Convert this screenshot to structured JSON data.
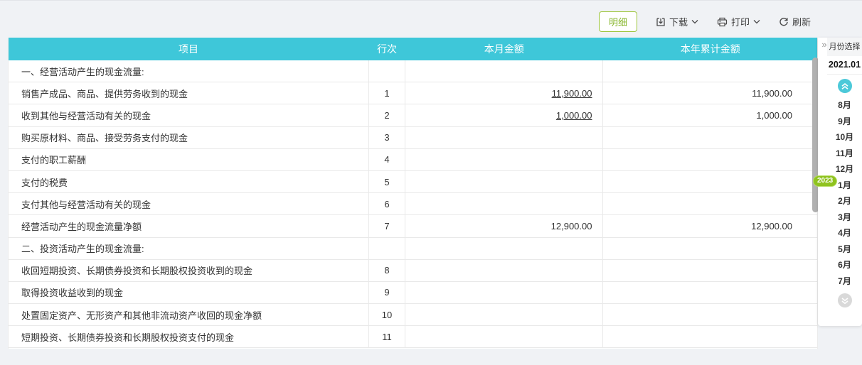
{
  "toolbar": {
    "detail_label": "明细",
    "download_label": "下载",
    "print_label": "打印",
    "refresh_label": "刷新"
  },
  "table": {
    "columns": [
      "项目",
      "行次",
      "本月金额",
      "本年累计金额"
    ],
    "rows": [
      {
        "item": "一、经营活动产生的现金流量:",
        "line": "",
        "month": "",
        "year": "",
        "month_link": false
      },
      {
        "item": "销售产成品、商品、提供劳务收到的现金",
        "line": "1",
        "month": "11,900.00",
        "year": "11,900.00",
        "month_link": true
      },
      {
        "item": "收到其他与经营活动有关的现金",
        "line": "2",
        "month": "1,000.00",
        "year": "1,000.00",
        "month_link": true
      },
      {
        "item": "购买原材料、商品、接受劳务支付的现金",
        "line": "3",
        "month": "",
        "year": "",
        "month_link": false
      },
      {
        "item": "支付的职工薪酬",
        "line": "4",
        "month": "",
        "year": "",
        "month_link": false
      },
      {
        "item": "支付的税费",
        "line": "5",
        "month": "",
        "year": "",
        "month_link": false
      },
      {
        "item": "支付其他与经营活动有关的现金",
        "line": "6",
        "month": "",
        "year": "",
        "month_link": false
      },
      {
        "item": "经营活动产生的现金流量净额",
        "line": "7",
        "month": "12,900.00",
        "year": "12,900.00",
        "month_link": false
      },
      {
        "item": "二、投资活动产生的现金流量:",
        "line": "",
        "month": "",
        "year": "",
        "month_link": false
      },
      {
        "item": "收回短期投资、长期债券投资和长期股权投资收到的现金",
        "line": "8",
        "month": "",
        "year": "",
        "month_link": false
      },
      {
        "item": "取得投资收益收到的现金",
        "line": "9",
        "month": "",
        "year": "",
        "month_link": false
      },
      {
        "item": "处置固定资产、无形资产和其他非流动资产收回的现金净额",
        "line": "10",
        "month": "",
        "year": "",
        "month_link": false
      },
      {
        "item": "短期投资、长期债券投资和长期股权投资支付的现金",
        "line": "11",
        "month": "",
        "year": "",
        "month_link": false
      }
    ]
  },
  "month_panel": {
    "title": "月份选择",
    "current": "2021.01",
    "year_badge": "2023",
    "months": [
      "8月",
      "9月",
      "10月",
      "11月",
      "12月",
      "1月",
      "2月",
      "3月",
      "4月",
      "5月",
      "6月",
      "7月"
    ],
    "badge_before_index": 5
  },
  "icons": {
    "download": "download-icon",
    "print": "printer-icon",
    "refresh": "refresh-icon",
    "collapse": "chevrons-right-icon",
    "scroll_up": "chevrons-up-icon",
    "scroll_down": "chevrons-down-icon"
  },
  "colors": {
    "header_teal": "#3ec7d9",
    "accent_green": "#8fc31f",
    "page_bg": "#f0f2f5"
  }
}
